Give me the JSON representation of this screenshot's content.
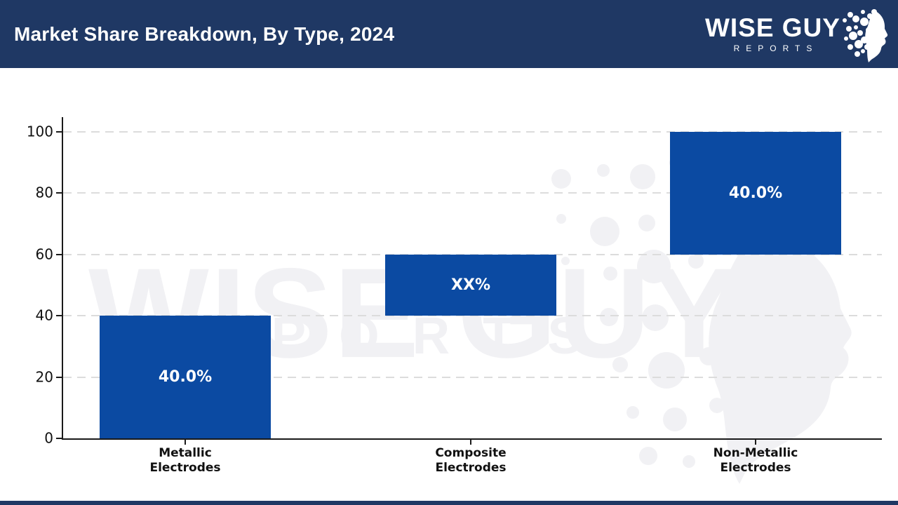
{
  "header": {
    "title": "Market Share Breakdown, By Type, 2024",
    "bg_color": "#1f3864",
    "logo": {
      "line1": "WISE GUY",
      "line2": "REPORTS"
    }
  },
  "watermark": {
    "line1": "WISE GUY",
    "line2": "REPORTS"
  },
  "chart_data": {
    "type": "bar",
    "variant": "waterfall",
    "title": "Market Share Breakdown, By Type, 2024",
    "categories": [
      "Metallic Electrodes",
      "Composite Electrodes",
      "Non-Metallic Electrodes"
    ],
    "category_label_lines": [
      [
        "Metallic",
        "Electrodes"
      ],
      [
        "Composite",
        "Electrodes"
      ],
      [
        "Non-Metallic",
        "Electrodes"
      ]
    ],
    "bars": [
      {
        "category": "Metallic Electrodes",
        "start": 0,
        "end": 40,
        "label": "40.0%"
      },
      {
        "category": "Composite Electrodes",
        "start": 40,
        "end": 60,
        "label": "XX%"
      },
      {
        "category": "Non-Metallic Electrodes",
        "start": 60,
        "end": 100,
        "label": "40.0%"
      }
    ],
    "y_ticks": [
      0,
      20,
      40,
      60,
      80,
      100
    ],
    "ylim": [
      0,
      105
    ],
    "xlabel": "",
    "ylabel": "",
    "grid": "horizontal-dashed",
    "legend": "none",
    "bar_color": "#0b4aa2",
    "bar_label_color": "#ffffff",
    "axis_color": "#1a1a1a",
    "gridline_color": "#dcdcdc"
  }
}
